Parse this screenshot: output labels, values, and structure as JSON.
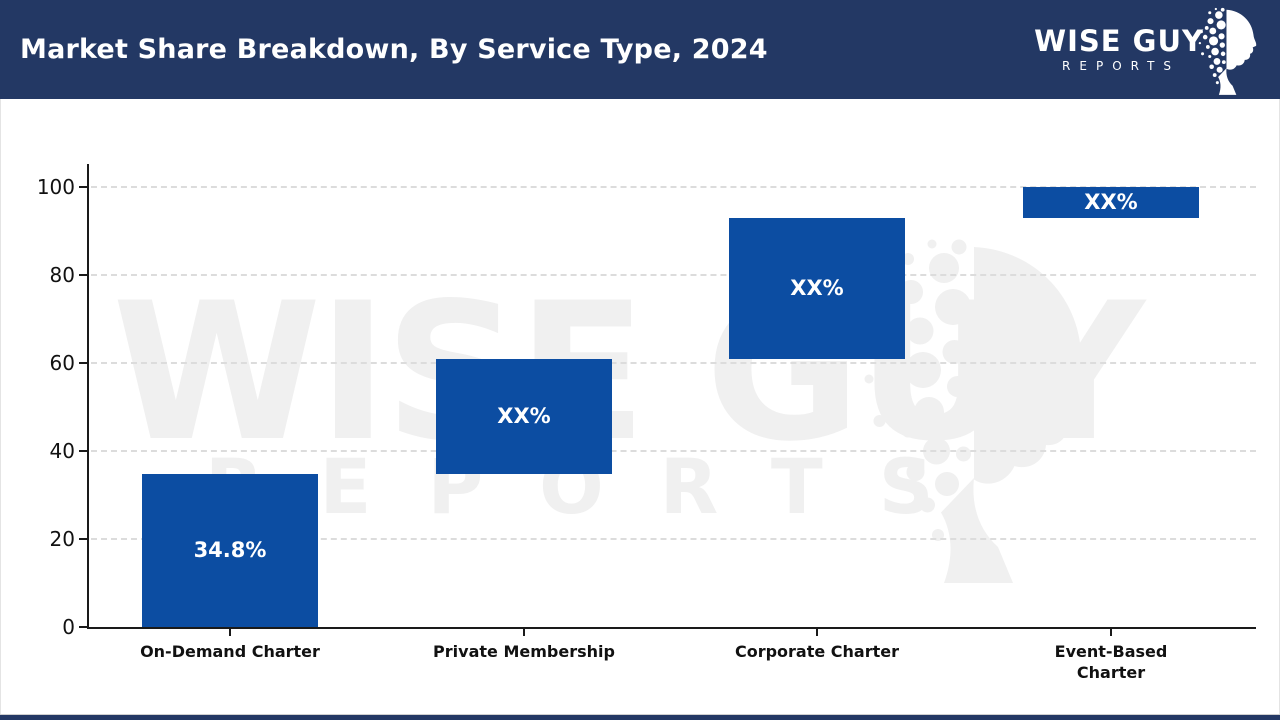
{
  "header": {
    "title": "Market Share Breakdown, By Service Type, 2024",
    "logo": {
      "line1": "WISE GUY",
      "line2": "REPORTS"
    }
  },
  "watermark": {
    "line1": "WISE GUY",
    "line2": "REPORTS"
  },
  "colors": {
    "header_bg": "#233864",
    "bar": "#0c4da2",
    "bar_label": "#ffffff",
    "grid": "#dcdcdc",
    "axis": "#1a1a1a",
    "watermark": "#f0f0f0"
  },
  "chart_data": {
    "type": "bar",
    "subtype": "waterfall",
    "title": "Market Share Breakdown, By Service Type, 2024",
    "categories": [
      "On-Demand Charter",
      "Private Membership",
      "Corporate Charter",
      "Event-Based\nCharter"
    ],
    "segments": [
      {
        "category": "On-Demand Charter",
        "start": 0,
        "end": 34.8,
        "value": 34.8,
        "label": "34.8%"
      },
      {
        "category": "Private Membership",
        "start": 34.8,
        "end": 61,
        "value": 26.2,
        "label": "XX%"
      },
      {
        "category": "Corporate Charter",
        "start": 61,
        "end": 93,
        "value": 32,
        "label": "XX%"
      },
      {
        "category": "Event-Based Charter",
        "start": 93,
        "end": 100,
        "value": 7,
        "label": "XX%"
      }
    ],
    "yticks": [
      0,
      20,
      40,
      60,
      80,
      100
    ],
    "ylim": [
      0,
      105
    ],
    "xlabel": "",
    "ylabel": "",
    "grid": "horizontal-dashed",
    "legend": "none",
    "bar_color": "#0c4da2",
    "label_color": "#ffffff"
  }
}
